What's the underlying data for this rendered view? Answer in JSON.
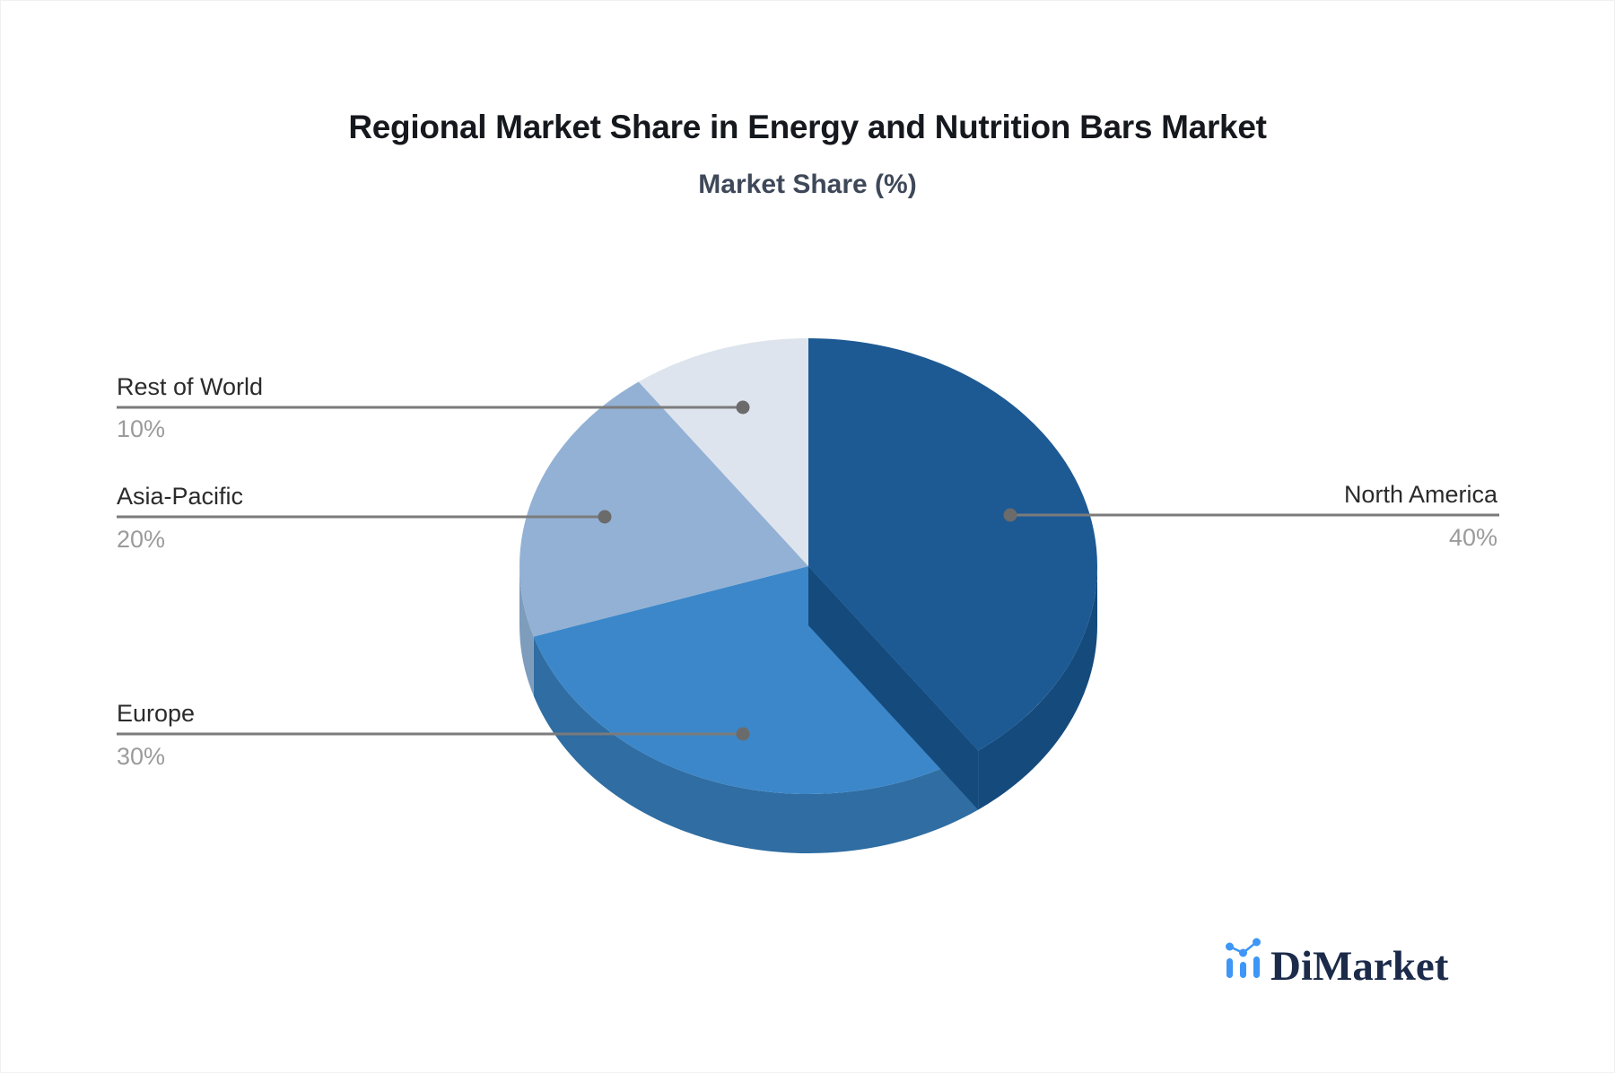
{
  "chart_data": {
    "type": "pie",
    "title": "Regional Market Share in Energy and Nutrition Bars Market",
    "subtitle": "Market Share (%)",
    "unit": "%",
    "start_angle_deg": 0,
    "direction": "clockwise",
    "style_3d": true,
    "segments": [
      {
        "label": "North America",
        "value": 40,
        "pct_label": "40%",
        "color": "#1d5a94",
        "shade": "#154a7c"
      },
      {
        "label": "Europe",
        "value": 30,
        "pct_label": "30%",
        "color": "#3c87c9",
        "shade": "#2f6da2"
      },
      {
        "label": "Asia-Pacific",
        "value": 20,
        "pct_label": "20%",
        "color": "#93b1d4",
        "shade": "#7e9cbc"
      },
      {
        "label": "Rest of World",
        "value": 10,
        "pct_label": "10%",
        "color": "#dde4ee"
      }
    ]
  },
  "leader": {
    "line_color": "#7b7b7b",
    "dot_color": "#6b6b6b"
  },
  "colors": {
    "title": "#15181d",
    "subtitle": "#3e4859",
    "label_name": "#2b2b2b",
    "label_pct": "#9b9b9b",
    "background": "#ffffff"
  },
  "logo": {
    "text": "DiMarket",
    "text_color": "#1c2b4a",
    "icon_color": "#3e96f6",
    "icon": "bar-line-chart-icon"
  }
}
